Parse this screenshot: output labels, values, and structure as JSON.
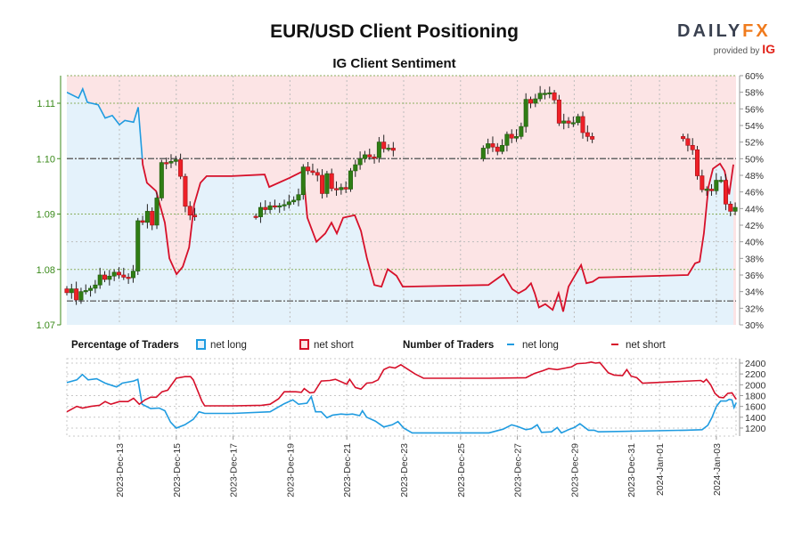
{
  "header": {
    "title": "EUR/USD Client Positioning",
    "subtitle": "IG Client Sentiment"
  },
  "logo": {
    "brand_main": "DAILY",
    "brand_accent": "FX",
    "provided_by": "provided by",
    "provider": "IG"
  },
  "colors": {
    "long": "#1f9be0",
    "short": "#d6102a",
    "long_fill": "#e4f2fb",
    "short_fill": "#fce4e5",
    "candle_up": "#2f7d14",
    "candle_down": "#ee2027",
    "price_axis": "#3a8a1a"
  },
  "legend": {
    "percentage_title": "Percentage of Traders",
    "pct_long": "net long",
    "pct_short": "net short",
    "number_title": "Number of Traders",
    "num_long": "net long",
    "num_short": "net short"
  },
  "chart_data": [
    {
      "type": "candlestick",
      "title": "EUR/USD",
      "ylim": [
        1.07,
        1.115
      ],
      "y_ticks": [
        "1.07",
        "1.08",
        "1.09",
        "1.10",
        "1.11"
      ],
      "candle_interval_days": 0.1667,
      "reference_lines": [
        1.1,
        1.0743
      ],
      "segments": [
        {
          "start_day": 0.15,
          "open": 1.0765,
          "closes": [
            1.0758,
            1.0765,
            1.0745,
            1.076,
            1.0762,
            1.0766,
            1.0772,
            1.079,
            1.0782,
            1.0788,
            1.0795,
            1.079,
            1.0786,
            1.0785,
            1.0797,
            1.0888,
            1.0885,
            1.0905,
            1.088,
            1.0929,
            1.0993,
            1.0992,
            1.0995,
            1.0998,
            1.0968,
            1.0914,
            1.0898,
            1.0895
          ]
        },
        {
          "start_day": 6.8,
          "open": 1.0896,
          "closes": [
            1.0895,
            1.0912,
            1.0908,
            1.0915,
            1.0913,
            1.0915,
            1.0917,
            1.0922,
            1.0925,
            1.0935,
            1.0985,
            1.0978,
            1.0975,
            1.097,
            1.0937,
            1.0973,
            1.0946,
            1.0944,
            1.0948,
            1.0945,
            1.0978,
            1.0989,
            1.1,
            1.1007,
            1.1003,
            1.1002,
            1.103,
            1.1018,
            1.1019,
            1.1015
          ]
        },
        {
          "start_day": 14.8,
          "open": 1.1,
          "closes": [
            1.1019,
            1.1027,
            1.1021,
            1.1013,
            1.1024,
            1.1044,
            1.1037,
            1.104,
            1.1058,
            1.1107,
            1.11,
            1.1108,
            1.1118,
            1.1118,
            1.1119,
            1.1106,
            1.1064,
            1.1068,
            1.1064,
            1.1065,
            1.1076,
            1.1047,
            1.104,
            1.1035
          ]
        },
        {
          "start_day": 21.83,
          "open": 1.104,
          "closes": [
            1.1036,
            1.1024,
            1.1016,
            1.0969,
            1.0944,
            1.0945,
            1.0942,
            1.0961,
            1.0961,
            1.0918,
            1.0905,
            1.0912
          ]
        }
      ]
    },
    {
      "type": "area",
      "title": "Percentage of Traders net long",
      "ylim": [
        30,
        60
      ],
      "y_ticks": [
        "30%",
        "32%",
        "34%",
        "36%",
        "38%",
        "40%",
        "42%",
        "44%",
        "46%",
        "48%",
        "50%",
        "52%",
        "54%",
        "56%",
        "58%",
        "60%"
      ],
      "x_day": [
        0.15,
        0.56,
        0.71,
        0.87,
        1.25,
        1.5,
        1.75,
        2.0,
        2.19,
        2.5,
        2.66,
        2.82,
        2.97,
        3.29,
        3.6,
        3.76,
        4.01,
        4.23,
        4.45,
        4.63,
        4.85,
        5.07,
        5.95,
        7.11,
        7.27,
        7.99,
        8.46,
        8.61,
        8.93,
        9.24,
        9.46,
        9.65,
        9.87,
        10.28,
        10.5,
        10.71,
        10.97,
        11.22,
        11.44,
        11.75,
        11.97,
        14.98,
        15.51,
        15.82,
        16.04,
        16.29,
        16.48,
        16.61,
        16.76,
        16.98,
        17.24,
        17.45,
        17.61,
        17.8,
        18.02,
        18.24,
        18.43,
        18.65,
        18.87,
        22.0,
        22.25,
        22.41,
        22.56,
        22.72,
        22.88,
        23.13,
        23.29,
        23.45,
        23.6
      ],
      "net_long_pct": [
        58.0,
        57.3,
        58.4,
        56.8,
        56.5,
        54.9,
        55.2,
        54.1,
        54.6,
        54.4,
        56.2,
        49.3,
        47.1,
        46.1,
        42.3,
        38.0,
        36.1,
        37.0,
        39.3,
        44.5,
        47.1,
        47.9,
        47.9,
        48.1,
        46.6,
        47.7,
        48.5,
        42.9,
        40.0,
        41.0,
        42.3,
        41.0,
        42.9,
        43.2,
        41.3,
        38.0,
        34.8,
        34.6,
        36.7,
        35.9,
        34.6,
        34.8,
        36.1,
        34.3,
        33.8,
        34.3,
        35.0,
        33.8,
        32.1,
        32.5,
        31.8,
        33.8,
        31.6,
        34.6,
        35.9,
        37.2,
        35.0,
        35.2,
        35.7,
        36.0,
        37.4,
        37.6,
        41.0,
        46.6,
        48.8,
        49.4,
        48.5,
        45.7,
        49.3
      ]
    },
    {
      "type": "line",
      "title": "Number of Traders",
      "ylim": [
        1100,
        2450
      ],
      "y_ticks": [
        "1200",
        "1400",
        "1600",
        "1800",
        "2000",
        "2200",
        "2400"
      ],
      "x_tick_labels": [
        "2023-Dec-13",
        "2023-Dec-15",
        "2023-Dec-17",
        "2023-Dec-19",
        "2023-Dec-21",
        "2023-Dec-23",
        "2023-Dec-25",
        "2023-Dec-27",
        "2023-Dec-29",
        "2023-Dec-31",
        "2024-Jan-01",
        "2024-Jan-03"
      ],
      "x_tick_days": [
        2,
        4,
        6,
        8,
        10,
        12,
        14,
        16,
        18,
        20,
        21,
        23
      ],
      "series": [
        {
          "name": "net long",
          "x_day": [
            0.15,
            0.5,
            0.7,
            0.9,
            1.2,
            1.5,
            1.9,
            2.1,
            2.5,
            2.65,
            2.8,
            3.1,
            3.4,
            3.6,
            3.8,
            4.0,
            4.3,
            4.6,
            4.8,
            5.0,
            6.0,
            7.3,
            7.5,
            7.8,
            8.1,
            8.3,
            8.6,
            8.75,
            8.9,
            9.1,
            9.3,
            9.5,
            9.8,
            10.0,
            10.2,
            10.45,
            10.55,
            10.7,
            11.0,
            11.3,
            11.6,
            11.8,
            12.0,
            12.3,
            15.0,
            15.5,
            15.8,
            16.0,
            16.3,
            16.5,
            16.7,
            16.85,
            17.2,
            17.4,
            17.55,
            17.8,
            18.0,
            18.2,
            18.5,
            18.7,
            18.85,
            21.9,
            22.5,
            22.7,
            22.85,
            23.0,
            23.15,
            23.35,
            23.45,
            23.55,
            23.62,
            23.7
          ],
          "values": [
            2040,
            2090,
            2190,
            2090,
            2110,
            2030,
            1960,
            2030,
            2070,
            2100,
            1640,
            1560,
            1570,
            1520,
            1310,
            1200,
            1260,
            1360,
            1500,
            1470,
            1470,
            1500,
            1560,
            1650,
            1720,
            1640,
            1660,
            1780,
            1500,
            1500,
            1390,
            1440,
            1460,
            1450,
            1460,
            1430,
            1520,
            1400,
            1330,
            1220,
            1260,
            1320,
            1200,
            1110,
            1110,
            1180,
            1260,
            1230,
            1170,
            1190,
            1260,
            1120,
            1130,
            1210,
            1110,
            1170,
            1210,
            1280,
            1160,
            1160,
            1130,
            1160,
            1170,
            1250,
            1400,
            1600,
            1700,
            1700,
            1730,
            1720,
            1580,
            1670
          ]
        },
        {
          "name": "net short",
          "x_day": [
            0.15,
            0.5,
            0.7,
            1.0,
            1.3,
            1.5,
            1.7,
            2.0,
            2.3,
            2.5,
            2.7,
            2.9,
            3.1,
            3.3,
            3.5,
            3.7,
            4.0,
            4.3,
            4.5,
            4.6,
            4.9,
            5.0,
            6.0,
            7.0,
            7.3,
            7.6,
            7.8,
            8.2,
            8.4,
            8.5,
            8.7,
            8.85,
            9.1,
            9.4,
            9.6,
            10.0,
            10.1,
            10.3,
            10.5,
            10.7,
            10.9,
            11.1,
            11.3,
            11.5,
            11.7,
            11.9,
            12.4,
            12.7,
            15.0,
            16.3,
            16.6,
            16.9,
            17.1,
            17.4,
            17.7,
            17.9,
            18.1,
            18.4,
            18.6,
            18.75,
            18.9,
            19.2,
            19.4,
            19.7,
            19.85,
            20.0,
            20.2,
            20.4,
            22.45,
            22.55,
            22.65,
            22.8,
            22.95,
            23.1,
            23.25,
            23.4,
            23.55,
            23.7
          ],
          "values": [
            1500,
            1600,
            1570,
            1600,
            1620,
            1690,
            1640,
            1690,
            1690,
            1750,
            1640,
            1720,
            1770,
            1770,
            1870,
            1900,
            2120,
            2150,
            2150,
            2090,
            1700,
            1610,
            1610,
            1620,
            1640,
            1740,
            1870,
            1870,
            1860,
            1930,
            1850,
            1860,
            2070,
            2080,
            2100,
            2010,
            2100,
            1950,
            1920,
            2030,
            2040,
            2090,
            2280,
            2330,
            2310,
            2370,
            2200,
            2120,
            2120,
            2130,
            2210,
            2260,
            2300,
            2280,
            2310,
            2330,
            2390,
            2400,
            2420,
            2400,
            2410,
            2220,
            2180,
            2170,
            2280,
            2160,
            2130,
            2030,
            2080,
            2050,
            2100,
            2000,
            1840,
            1770,
            1760,
            1840,
            1850,
            1730
          ]
        }
      ]
    }
  ]
}
